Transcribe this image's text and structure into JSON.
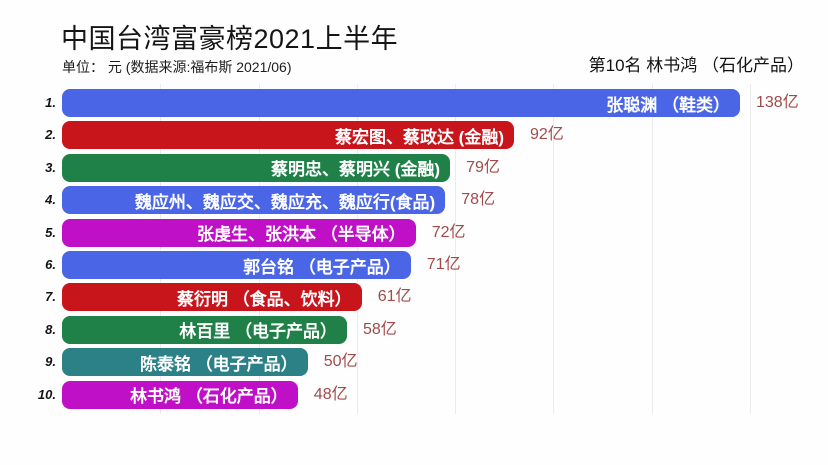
{
  "header": {
    "title": "中国台湾富豪榜2021上半年",
    "subtitle": "单位： 元 (数据来源:福布斯 2021/06)",
    "current_rank_label": "第10名 林书鸿 （石化产品）"
  },
  "chart_data": {
    "type": "bar",
    "orientation": "horizontal",
    "title": "中国台湾富豪榜2021上半年",
    "subtitle": "单位： 元 (数据来源:福布斯 2021/06)",
    "unit": "亿",
    "value_suffix": "亿",
    "xlim": [
      0,
      140
    ],
    "gridline_step": 20,
    "grid": true,
    "legend": false,
    "bars": [
      {
        "rank": "1.",
        "label": "张聪渊 （鞋类）",
        "value": 138,
        "value_label": "138亿",
        "color": "#4A65E5"
      },
      {
        "rank": "2.",
        "label": "蔡宏图、蔡政达 (金融)",
        "value": 92,
        "value_label": "92亿",
        "color": "#C8141B"
      },
      {
        "rank": "3.",
        "label": "蔡明忠、蔡明兴 (金融)",
        "value": 79,
        "value_label": "79亿",
        "color": "#1F8048"
      },
      {
        "rank": "4.",
        "label": "魏应州、魏应交、魏应充、魏应行(食品)",
        "value": 78,
        "value_label": "78亿",
        "color": "#4A65E5"
      },
      {
        "rank": "5.",
        "label": "张虔生、张洪本 （半导体）",
        "value": 72,
        "value_label": "72亿",
        "color": "#BF10C7"
      },
      {
        "rank": "6.",
        "label": "郭台铭 （电子产品）",
        "value": 71,
        "value_label": "71亿",
        "color": "#4A65E5"
      },
      {
        "rank": "7.",
        "label": "蔡衍明 （食品、饮料）",
        "value": 61,
        "value_label": "61亿",
        "color": "#C8141B"
      },
      {
        "rank": "8.",
        "label": "林百里 （电子产品）",
        "value": 58,
        "value_label": "58亿",
        "color": "#1F8048"
      },
      {
        "rank": "9.",
        "label": "陈泰铭 （电子产品）",
        "value": 50,
        "value_label": "50亿",
        "color": "#2B8186"
      },
      {
        "rank": "10.",
        "label": "林书鸿 （石化产品）",
        "value": 48,
        "value_label": "48亿",
        "color": "#BF10C7"
      }
    ],
    "colors": {
      "value_label": "#A04A4A",
      "gridline": "#EBEBEB",
      "bar_text": "#FFFFFF"
    }
  }
}
